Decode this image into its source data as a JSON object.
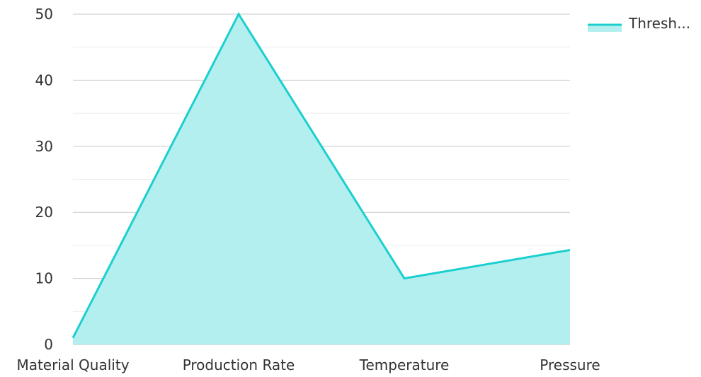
{
  "chart_data": {
    "type": "area",
    "categories": [
      "Material Quality",
      "Production Rate",
      "Temperature",
      "Pressure"
    ],
    "series": [
      {
        "name": "Thresh...",
        "values": [
          1,
          50,
          10,
          14.3
        ],
        "color": "#1ccfcf",
        "fill": "#b3efee"
      }
    ],
    "ylim": [
      0,
      50
    ],
    "y_ticks": [
      0,
      10,
      20,
      30,
      40,
      50
    ],
    "grid": true,
    "legend": "top-right",
    "title": "",
    "xlabel": "",
    "ylabel": ""
  }
}
